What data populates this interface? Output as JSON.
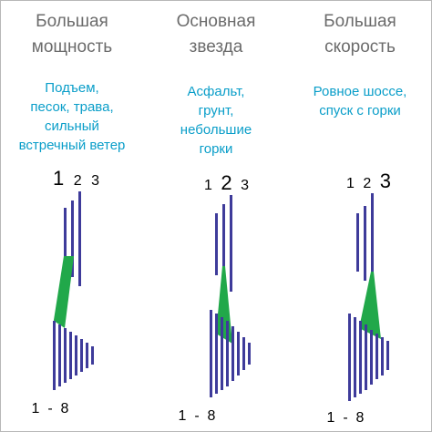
{
  "colors": {
    "title": "#6b6b6b",
    "description": "#0a9ec9",
    "gear": "#3e3b9a",
    "chain": "#21a84a"
  },
  "columns": [
    {
      "title_lines": [
        "Большая",
        "мощность"
      ],
      "desc_lines": [
        "Подъем,",
        "песок, трава,",
        "сильный",
        "встречный ветер"
      ],
      "chainring_labels": [
        "1",
        "2",
        "3"
      ],
      "selected_chainring": 1,
      "selected_sprocket": 1,
      "cassette_label": "1  -  8"
    },
    {
      "title_lines": [
        "Основная",
        "звезда"
      ],
      "desc_lines": [
        "Асфальт,",
        "грунт,",
        "небольшие",
        "горки"
      ],
      "chainring_labels": [
        "1",
        "2",
        "3"
      ],
      "selected_chainring": 2,
      "selected_sprocket": 4,
      "cassette_label": "1  -  8"
    },
    {
      "title_lines": [
        "Большая",
        "скорость"
      ],
      "desc_lines": [
        "Ровное шоссе,",
        "спуск с горки"
      ],
      "chainring_labels": [
        "1",
        "2",
        "3"
      ],
      "selected_chainring": 3,
      "selected_sprocket": 7,
      "cassette_label": "1  -  8"
    }
  ]
}
